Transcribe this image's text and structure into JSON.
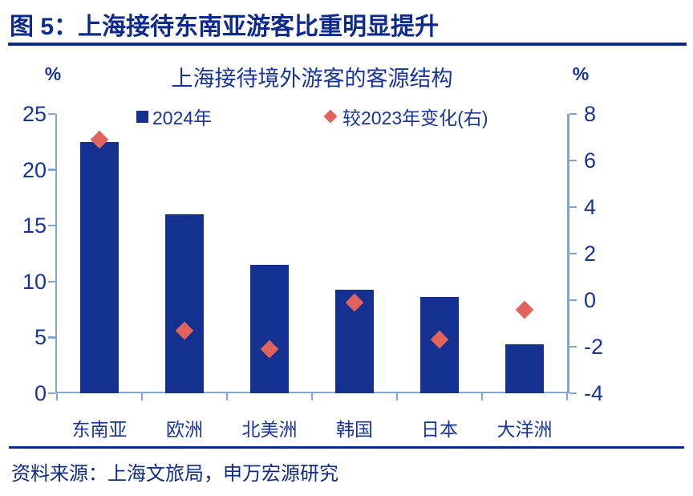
{
  "header": {
    "title": "图 5：上海接待东南亚游客比重明显提升"
  },
  "chart_data": {
    "type": "bar",
    "title": "上海接待境外游客的客源结构",
    "categories": [
      "东南亚",
      "欧洲",
      "北美洲",
      "韩国",
      "日本",
      "大洋洲"
    ],
    "series": [
      {
        "name": "2024年",
        "type": "bar",
        "axis": "left",
        "marker": "square",
        "color": "#14318F",
        "values": [
          22.5,
          16.0,
          11.5,
          9.3,
          8.6,
          4.4
        ]
      },
      {
        "name": "较2023年变化(右)",
        "type": "scatter",
        "axis": "right",
        "marker": "diamond",
        "color": "#E0635E",
        "values": [
          6.9,
          -1.3,
          -2.1,
          -0.1,
          -1.7,
          -0.4
        ]
      }
    ],
    "left_axis": {
      "unit": "%",
      "range": [
        0,
        25
      ],
      "ticks": [
        0,
        5,
        10,
        15,
        20,
        25
      ]
    },
    "right_axis": {
      "unit": "%",
      "range": [
        -4,
        8
      ],
      "ticks": [
        -4,
        -2,
        0,
        2,
        4,
        6,
        8
      ]
    },
    "legend_position": "top",
    "grid": false
  },
  "source": {
    "text": "资料来源：上海文旅局，申万宏源研究"
  },
  "colors": {
    "navy": "#0E2A8C",
    "chart_text": "#1733A0",
    "bar_fill": "#14318F",
    "diamond_fill": "#E0635E",
    "axis_line": "#7EA6D9",
    "background": "#FFFFFF"
  }
}
